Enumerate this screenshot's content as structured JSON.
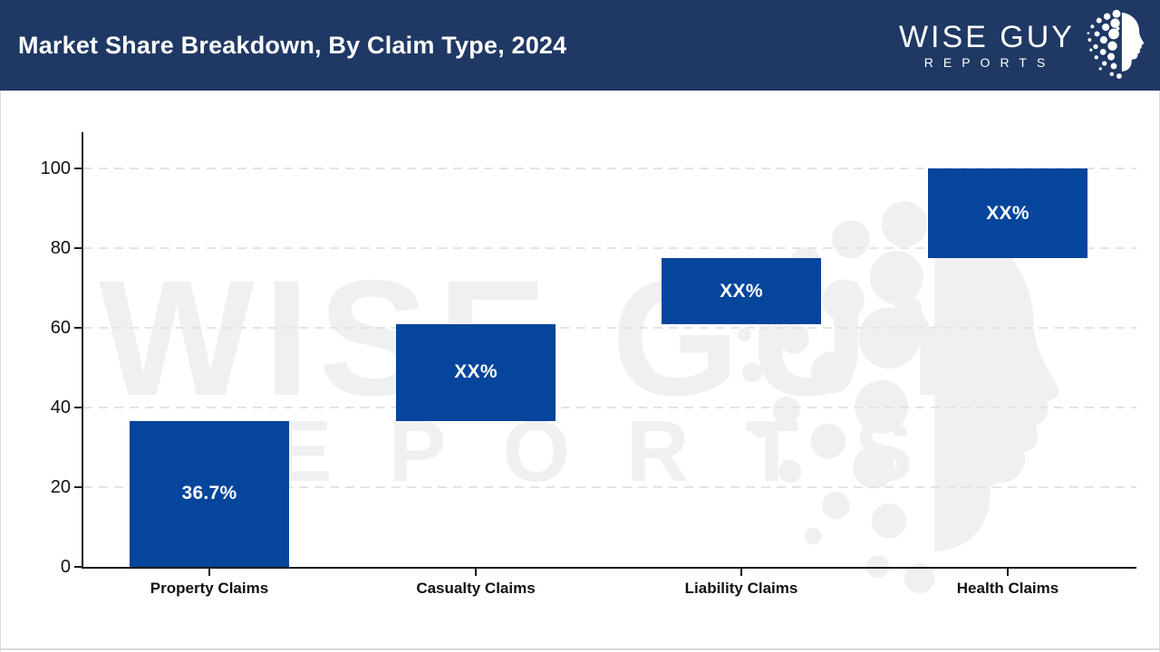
{
  "header": {
    "title": "Market Share Breakdown, By Claim Type, 2024",
    "logo": {
      "line1": "WISE GUY",
      "line2": "REPORTS"
    }
  },
  "watermark": {
    "line1": "WISE GUY",
    "line2": "REPORTS"
  },
  "colors": {
    "header_bg": "#1f3864",
    "bar": "#05459b",
    "bar_label": "#ffffff",
    "axis": "#1c1c1c",
    "grid": "#e4e4e4",
    "watermark": "#f0f0f2"
  },
  "chart_data": {
    "type": "bar",
    "subtype": "waterfall",
    "title": "Market Share Breakdown, By Claim Type, 2024",
    "categories": [
      "Property Claims",
      "Casualty Claims",
      "Liability Claims",
      "Health Claims"
    ],
    "bars": [
      {
        "category": "Property Claims",
        "start": 0,
        "end": 36.7,
        "label": "36.7%"
      },
      {
        "category": "Casualty Claims",
        "start": 36.7,
        "end": 60.8,
        "label": "XX%"
      },
      {
        "category": "Liability Claims",
        "start": 60.8,
        "end": 77.4,
        "label": "XX%"
      },
      {
        "category": "Health Claims",
        "start": 77.4,
        "end": 100,
        "label": "XX%"
      }
    ],
    "y_ticks": [
      0,
      20,
      40,
      60,
      80,
      100
    ],
    "ylim": [
      0,
      108
    ],
    "xlabel": "",
    "ylabel": "",
    "grid": "horizontal-dashed",
    "legend": "none"
  }
}
